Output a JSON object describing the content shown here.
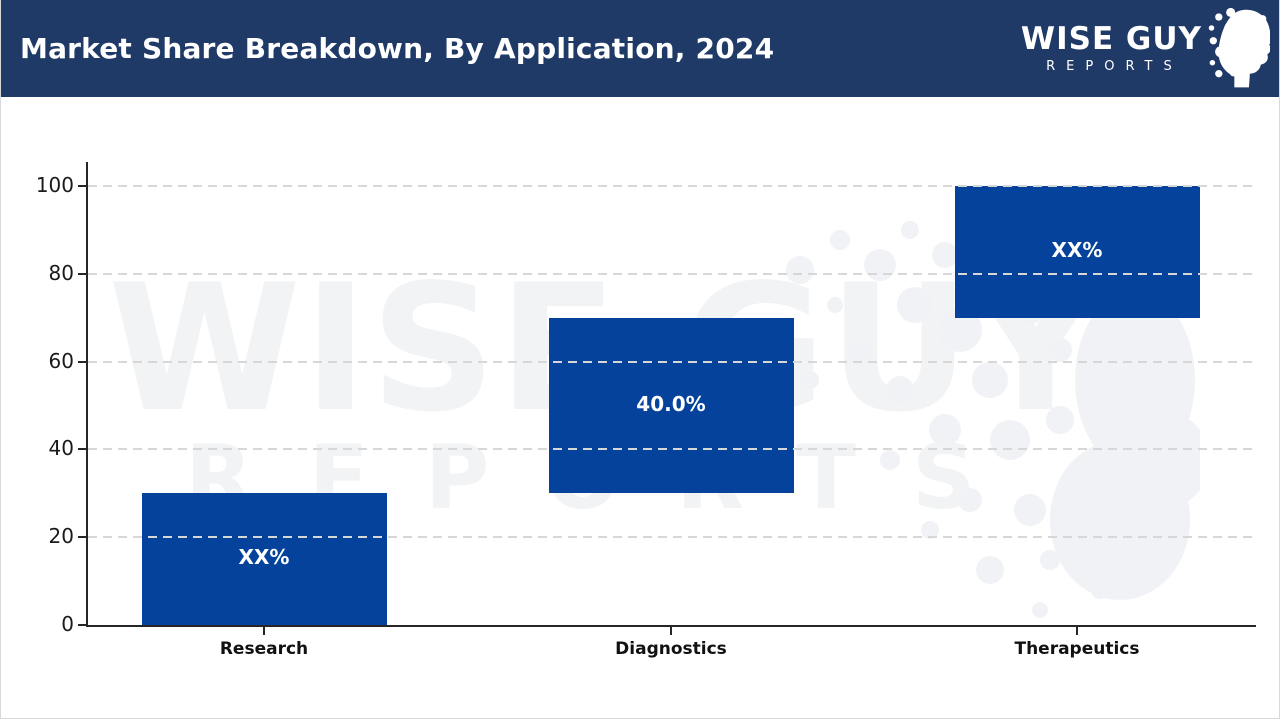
{
  "page": {
    "background": "#ffffff",
    "border_color": "#d9d9d9"
  },
  "header": {
    "bg_color": "#1f3a67",
    "title": "Market Share Breakdown, By Application, 2024",
    "logo": {
      "wordmark": "WISE GUY",
      "sub": "REPORTS"
    }
  },
  "watermark": {
    "wordmark": "WISE GUY",
    "sub": "REPORTS"
  },
  "chart_data": {
    "type": "bar",
    "subtype": "floating-segment-bars",
    "title": "Market Share Breakdown, By Application, 2024",
    "categories": [
      "Research",
      "Diagnostics",
      "Therapeutics"
    ],
    "bars": [
      {
        "category": "Research",
        "from": 0,
        "to": 30,
        "label": "XX%"
      },
      {
        "category": "Diagnostics",
        "from": 30,
        "to": 70,
        "label": "40.0%"
      },
      {
        "category": "Therapeutics",
        "from": 70,
        "to": 100,
        "label": "XX%"
      }
    ],
    "xlabel": "",
    "ylabel": "",
    "yticks": [
      0,
      20,
      40,
      60,
      80,
      100
    ],
    "ylim": [
      0,
      105.5
    ],
    "grid": {
      "horizontal": true,
      "style": "dashed",
      "drawn_above_bars": true
    },
    "legend": "none",
    "colors": {
      "bar": "#05429b",
      "bar_label": "#ffffff",
      "grid_line": "#d7d7d7",
      "axis_line": "#262626",
      "tick_label": "#1a1a1a",
      "category_label": "#111111"
    }
  }
}
